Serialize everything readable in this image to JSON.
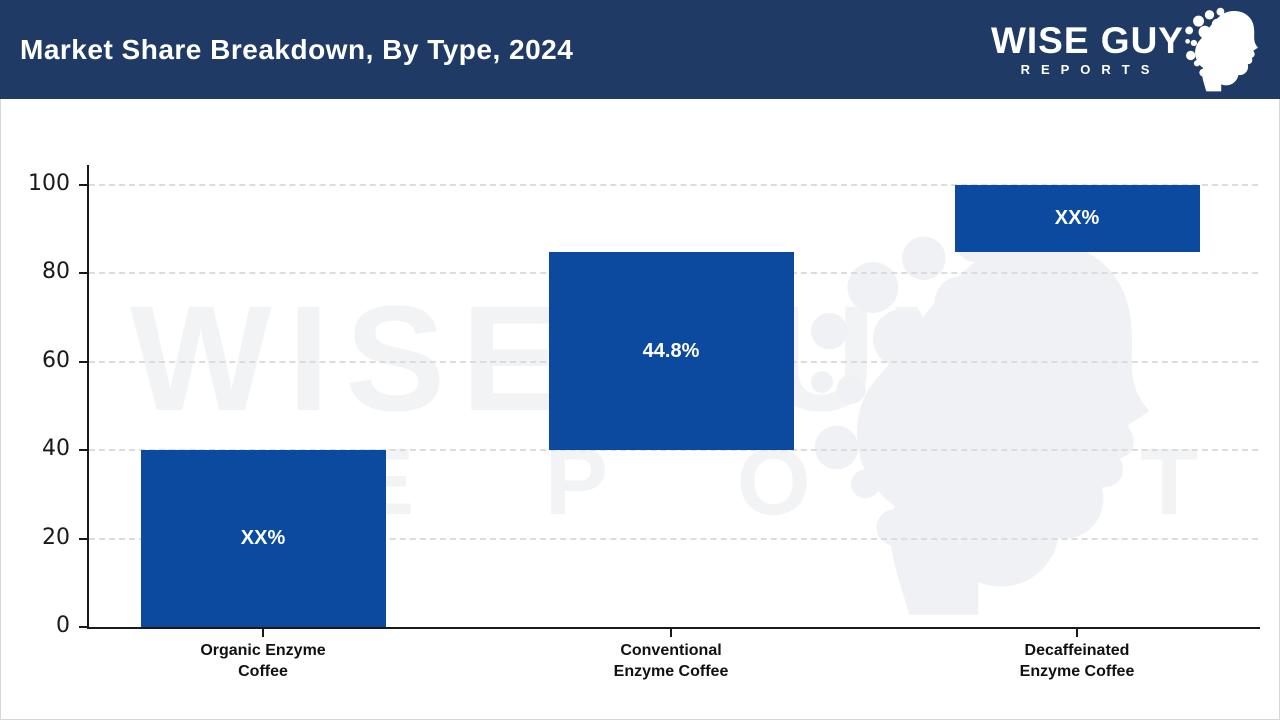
{
  "header": {
    "title": "Market Share Breakdown, By Type, 2024",
    "logo": {
      "line1": "WISE GUY",
      "line2": "REPORTS"
    }
  },
  "watermark": {
    "line1": "WISE GUY",
    "line2": "R E P O R T S"
  },
  "colors": {
    "header_bg": "#203a66",
    "bar_blue": "#0b4a9e",
    "watermark_gray": "#f2f3f5",
    "gridline": "#dcdcdc",
    "axis": "#1a1a1a",
    "bar_label": "#ffffff"
  },
  "chart_data": {
    "type": "bar",
    "subtype": "floating-waterfall",
    "title": "Market Share Breakdown, By Type, 2024",
    "categories": [
      "Organic Enzyme Coffee",
      "Conventional Enzyme Coffee",
      "Decaffeinated Enzyme Coffee"
    ],
    "categories_wrapped": [
      [
        "Organic Enzyme",
        "Coffee"
      ],
      [
        "Conventional",
        "Enzyme Coffee"
      ],
      [
        "Decaffeinated",
        "Enzyme Coffee"
      ]
    ],
    "segments": [
      {
        "category": "Organic Enzyme Coffee",
        "base": 0,
        "top": 40,
        "label": "XX%"
      },
      {
        "category": "Conventional Enzyme Coffee",
        "base": 40,
        "top": 84.8,
        "label": "44.8%"
      },
      {
        "category": "Decaffeinated Enzyme Coffee",
        "base": 84.8,
        "top": 100,
        "label": "XX%"
      }
    ],
    "xlabel": "",
    "ylabel": "",
    "ylim": [
      0,
      100
    ],
    "yticks": [
      0,
      20,
      40,
      60,
      80,
      100
    ],
    "grid": "horizontal-dashed",
    "legend": "none",
    "bar_color": "#0b4a9e",
    "bar_label_color": "#ffffff"
  }
}
